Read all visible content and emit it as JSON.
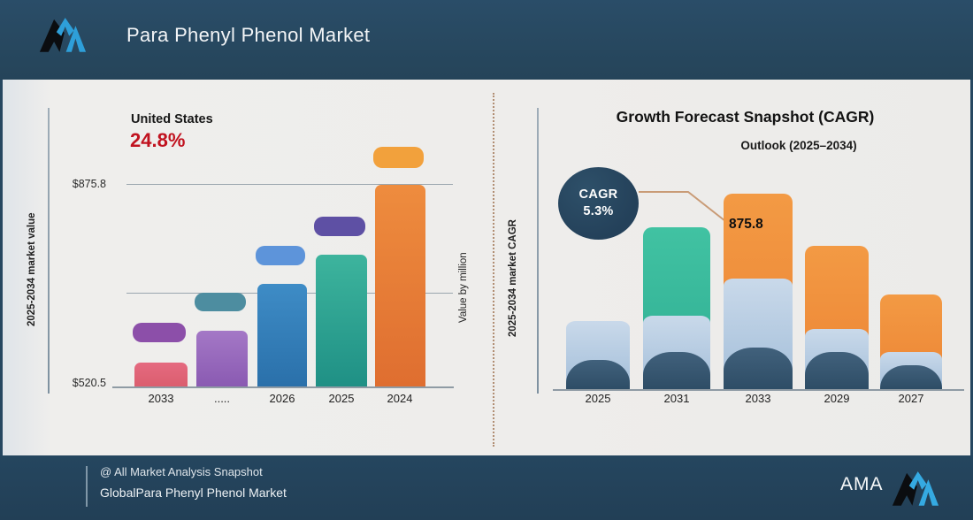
{
  "header": {
    "title": "Para Phenyl Phenol Market",
    "logo": "ama-mountain-logo"
  },
  "footer": {
    "line1": "@ All Market Analysis Snapshot",
    "line2": "GlobalPara Phenyl Phenol Market",
    "brand": "AMA",
    "logo": "ama-mountain-logo"
  },
  "colors": {
    "band_navy": "#254459",
    "panel_light": "#eeedeb",
    "highlight_red": "#c1121f",
    "badge_navy": "#27455c",
    "connector_tan": "#c99b76",
    "logo_blue": "#2e9fd9",
    "logo_black": "#0b0d10"
  },
  "chart_data": [
    {
      "id": "us-market-value",
      "type": "bar",
      "title": "United States",
      "highlight_value": "24.8%",
      "ylabel": "2025-2034 market value",
      "value_axis_label": "Value by million",
      "axis": {
        "y_base": 520.5,
        "y_gridline": 875.8,
        "tick_labels": [
          "$875.8",
          "$520.5"
        ],
        "grid": true
      },
      "categories": [
        "2033",
        ".....",
        "2026",
        "2025",
        "2024"
      ],
      "values": [
        562,
        618,
        700,
        752,
        874
      ],
      "cap_segments": [
        [
          598,
          632
        ],
        [
          652,
          685
        ],
        [
          733,
          767
        ],
        [
          784,
          818
        ],
        [
          904,
          941
        ]
      ],
      "bar_colors": [
        [
          "#e56a80",
          "#db5e6e"
        ],
        [
          "#a478c6",
          "#8a5ab2"
        ],
        [
          "#3e8cc6",
          "#2a70aa"
        ],
        [
          "#3db49d",
          "#1f9085"
        ],
        [
          "#ee8c3e",
          "#df6e30"
        ]
      ],
      "cap_colors": [
        "#8c4fa9",
        "#4d8da0",
        "#5d94da",
        "#5e50a4",
        "#f2a13c"
      ]
    },
    {
      "id": "growth-forecast-cagr",
      "type": "stacked-bar",
      "title": "Growth Forecast Snapshot (CAGR)",
      "subtitle": "Outlook (2025–2034)",
      "ylabel": "2025-2034 market CAGR",
      "badge": {
        "label": "CAGR",
        "value": "5.3%"
      },
      "annotation": {
        "text": "875.8",
        "category": "2033"
      },
      "categories": [
        "2025",
        "2031",
        "2033",
        "2029",
        "2027"
      ],
      "ylim": [
        0,
        100
      ],
      "series": [
        {
          "name": "base-dark",
          "gradient": [
            "#41617c",
            "#2e4d66"
          ],
          "stack_tops": [
            14.3,
            18.3,
            20.4,
            18.3,
            11.7
          ]
        },
        {
          "name": "mid-lightblue",
          "gradient": [
            "#c9d9ea",
            "#a3bed9"
          ],
          "stack_tops": [
            33.5,
            36.1,
            54.3,
            29.6,
            18.3
          ]
        },
        {
          "name": "top-color",
          "gradients": [
            null,
            [
              "#41c2a2",
              "#2fae93"
            ],
            [
              "#f39a44",
              "#ec8434"
            ],
            [
              "#f39a44",
              "#ec8434"
            ],
            [
              "#f39a44",
              "#ec8434"
            ]
          ],
          "stack_tops": [
            null,
            79.6,
            96.1,
            70.4,
            46.5
          ]
        }
      ]
    }
  ]
}
